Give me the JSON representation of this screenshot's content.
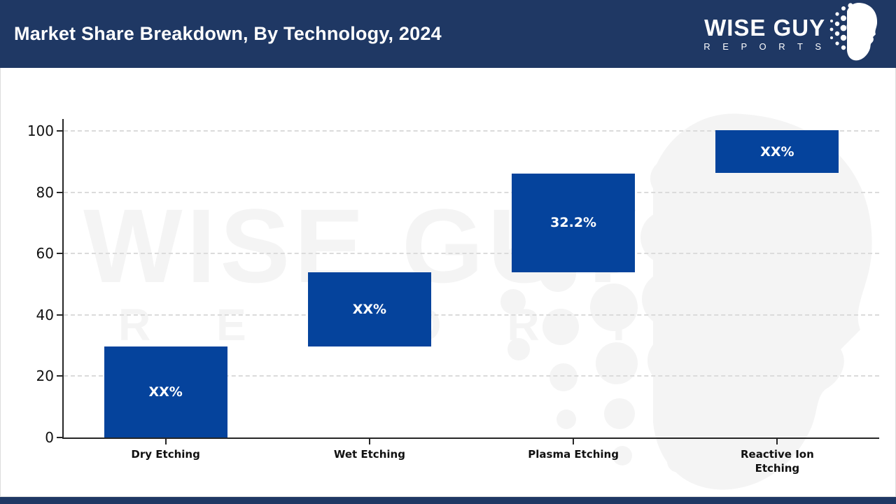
{
  "header": {
    "title": "Market Share Breakdown, By Technology, 2024",
    "logo": {
      "name": "WISE GUY",
      "sub": "R E P O R T S"
    }
  },
  "watermark": {
    "name": "WISE GUY",
    "sub": "R E P O R T S"
  },
  "colors": {
    "header_bg": "#1f3864",
    "footer_bg": "#1f3864",
    "bar": "#05439c",
    "bar_label_text": "#ffffff",
    "gridline": "#dbdbdb",
    "axis": "#262626",
    "watermark": "#f4f4f4"
  },
  "chart_data": {
    "type": "bar",
    "subtype": "waterfall",
    "title": "Market Share Breakdown, By Technology, 2024",
    "xlabel": "",
    "ylabel": "",
    "categories": [
      "Dry Etching",
      "Wet Etching",
      "Plasma Etching",
      "Reactive Ion Etching"
    ],
    "segments": [
      {
        "category": "Dry Etching",
        "start": 0,
        "end": 29.6,
        "value": 29.6,
        "label": "XX%"
      },
      {
        "category": "Wet Etching",
        "start": 29.6,
        "end": 54.0,
        "value": 24.4,
        "label": "XX%"
      },
      {
        "category": "Plasma Etching",
        "start": 54.0,
        "end": 86.2,
        "value": 32.2,
        "label": "32.2%"
      },
      {
        "category": "Reactive Ion Etching",
        "start": 86.2,
        "end": 100.2,
        "value": 14.0,
        "label": "XX%"
      }
    ],
    "yticks": [
      0,
      20,
      40,
      60,
      80,
      100
    ],
    "ylim": [
      0,
      103.9
    ],
    "grid": "horizontal-dashed",
    "legend": "none"
  }
}
